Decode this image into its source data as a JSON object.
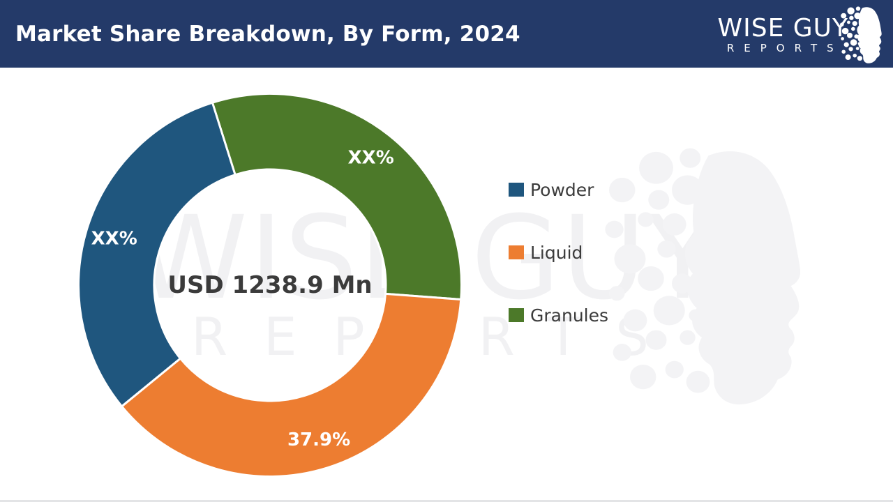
{
  "header": {
    "title": "Market Share Breakdown, By Form, 2024",
    "logo": {
      "line1": "WISE GUY",
      "line2": "REPORTS"
    }
  },
  "watermark": {
    "line1": "WISE GUY",
    "line2": "REPORTS"
  },
  "colors": {
    "header_bg": "#243a69",
    "powder_blue": "#1f567e",
    "liquid_orange": "#ed7d31",
    "granules_green": "#4c7929",
    "center_text": "#3b3b3b",
    "legend_text": "#3b3b3b",
    "watermark_gray": "#f1f1f3"
  },
  "chart_data": {
    "type": "pie",
    "subtype": "donut",
    "title": "Market Share Breakdown, By Form, 2024",
    "center_label": "USD 1238.9 Mn",
    "total": "USD 1238.9 Mn",
    "start_angle_deg": -17.5,
    "direction": "clockwise",
    "legend_position": "right",
    "segments": [
      {
        "name": "Granules",
        "value_pct": 31.05,
        "label": "XX%",
        "color": "#4c7929"
      },
      {
        "name": "Liquid",
        "value_pct": 37.9,
        "label": "37.9%",
        "color": "#ed7d31"
      },
      {
        "name": "Powder",
        "value_pct": 31.05,
        "label": "XX%",
        "color": "#1f567e"
      }
    ],
    "legend": [
      {
        "name": "Powder",
        "color": "#1f567e"
      },
      {
        "name": "Liquid",
        "color": "#ed7d31"
      },
      {
        "name": "Granules",
        "color": "#4c7929"
      }
    ]
  }
}
